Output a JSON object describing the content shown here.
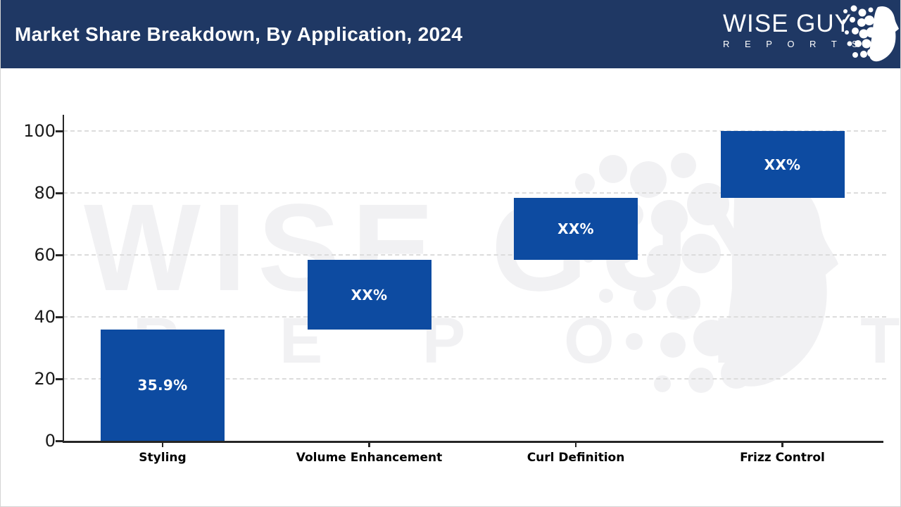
{
  "header": {
    "title": "Market Share Breakdown, By Application, 2024",
    "bg_color": "#1f3864",
    "logo": {
      "primary": "WISE GUY",
      "secondary": "R E P O R T S"
    }
  },
  "watermark": {
    "primary": "WISE GUY",
    "secondary": "R E P O R T S"
  },
  "chart_data": {
    "type": "bar",
    "subtype": "waterfall",
    "title": "Market Share Breakdown, By Application, 2024",
    "categories": [
      "Styling",
      "Volume Enhancement",
      "Curl Definition",
      "Frizz Control"
    ],
    "segments": [
      {
        "category": "Styling",
        "start": 0,
        "end": 35.9,
        "label": "35.9%"
      },
      {
        "category": "Volume Enhancement",
        "start": 35.9,
        "end": 58.3,
        "label": "XX%"
      },
      {
        "category": "Curl Definition",
        "start": 58.3,
        "end": 78.3,
        "label": "XX%"
      },
      {
        "category": "Frizz Control",
        "start": 78.3,
        "end": 100,
        "label": "XX%"
      }
    ],
    "yticks": [
      0,
      20,
      40,
      60,
      80,
      100
    ],
    "ylim": [
      0,
      105
    ],
    "xlabel": "",
    "ylabel": "",
    "grid": "horizontal-dashed",
    "legend": "none",
    "colors": {
      "bar": "#0d4ba1",
      "header_bg": "#1f3864",
      "grid_line": "#dcdcdc",
      "axis": "#262626",
      "bar_label_text": "#ffffff",
      "watermark": "#f1f1f3"
    }
  }
}
